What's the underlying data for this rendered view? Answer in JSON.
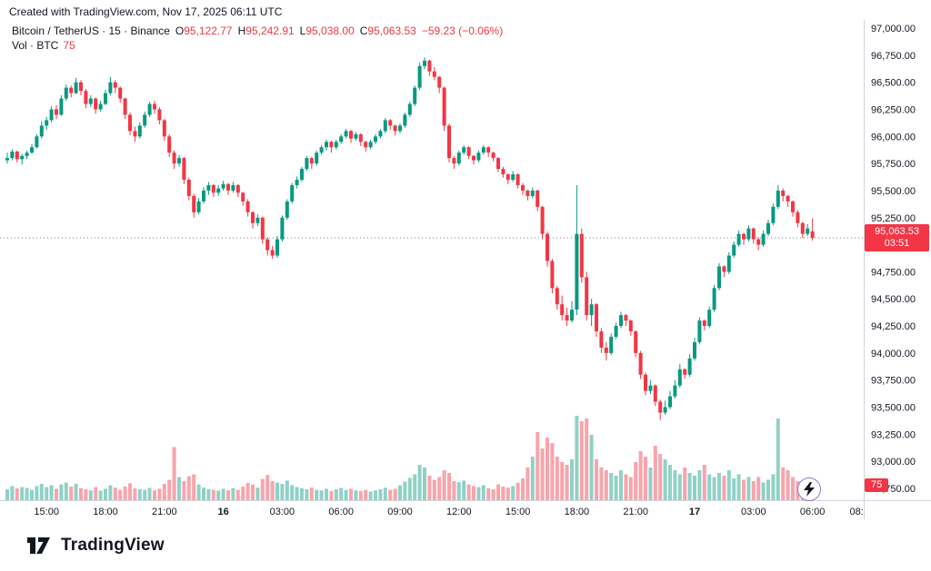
{
  "attribution": "Created with TradingView.com, Nov 17, 2025 06:11 UTC",
  "legend": {
    "title": "Bitcoin / TetherUS · 15 · Binance",
    "o_label": "O",
    "o": "95,122.77",
    "h_label": "H",
    "h": "95,242.91",
    "l_label": "L",
    "l": "95,038.00",
    "c_label": "C",
    "c": "95,063.53",
    "change": "−59.23 (−0.06%)",
    "vol_label": "Vol · BTC",
    "vol": "75"
  },
  "price_badge": {
    "price": "95,063.53",
    "countdown": "03:51"
  },
  "volume_badge": "75",
  "logo_mark": "17",
  "logo_text": "TradingView",
  "colors": {
    "up": "#089981",
    "down": "#f23645",
    "vol_up": "rgba(8,153,129,0.45)",
    "vol_down": "rgba(242,54,69,0.45)",
    "badge": "#f23645",
    "axis_text": "#131722",
    "separator": "#d1d4dc",
    "price_line": "#787b86"
  },
  "price_axis": {
    "min": 92750,
    "max": 97000,
    "step": 250,
    "labels": [
      "97,000.00",
      "96,750.00",
      "96,500.00",
      "96,250.00",
      "96,000.00",
      "95,750.00",
      "95,500.00",
      "95,250.00",
      "95,000.00",
      "94,750.00",
      "94,500.00",
      "94,250.00",
      "94,000.00",
      "93,750.00",
      "93,500.00",
      "93,250.00",
      "93,000.00",
      "92,750.00"
    ]
  },
  "time_axis": [
    {
      "label": "15:00",
      "index": 8,
      "bold": false
    },
    {
      "label": "18:00",
      "index": 20,
      "bold": false
    },
    {
      "label": "21:00",
      "index": 32,
      "bold": false
    },
    {
      "label": "16",
      "index": 44,
      "bold": true
    },
    {
      "label": "03:00",
      "index": 56,
      "bold": false
    },
    {
      "label": "06:00",
      "index": 68,
      "bold": false
    },
    {
      "label": "09:00",
      "index": 80,
      "bold": false
    },
    {
      "label": "12:00",
      "index": 92,
      "bold": false
    },
    {
      "label": "15:00",
      "index": 104,
      "bold": false
    },
    {
      "label": "18:00",
      "index": 116,
      "bold": false
    },
    {
      "label": "21:00",
      "index": 128,
      "bold": false
    },
    {
      "label": "17",
      "index": 140,
      "bold": true
    },
    {
      "label": "03:00",
      "index": 152,
      "bold": false
    },
    {
      "label": "06:00",
      "index": 164,
      "bold": false
    },
    {
      "label": "08:",
      "index": 173,
      "bold": false
    }
  ],
  "chart_data": {
    "type": "candlestick",
    "title": "Bitcoin / TetherUS · 15 · Binance",
    "xlabel": "",
    "ylabel": "Price (USDT)",
    "ylim": [
      92750,
      97000
    ],
    "interval_minutes": 15,
    "last_bar": {
      "open": 95122.77,
      "high": 95242.91,
      "low": 95038.0,
      "close": 95063.53,
      "change": -59.23,
      "change_pct": -0.06,
      "volume_btc": 75
    },
    "candles": [
      [
        95780,
        95850,
        95750,
        95800
      ],
      [
        95800,
        95880,
        95780,
        95860
      ],
      [
        95860,
        95870,
        95760,
        95790
      ],
      [
        95790,
        95840,
        95740,
        95820
      ],
      [
        95820,
        95870,
        95790,
        95850
      ],
      [
        95850,
        95930,
        95840,
        95900
      ],
      [
        95900,
        96020,
        95890,
        96000
      ],
      [
        96000,
        96140,
        95980,
        96100
      ],
      [
        96100,
        96180,
        96060,
        96150
      ],
      [
        96150,
        96280,
        96130,
        96250
      ],
      [
        96250,
        96290,
        96160,
        96200
      ],
      [
        96200,
        96380,
        96190,
        96350
      ],
      [
        96350,
        96480,
        96330,
        96450
      ],
      [
        96450,
        96470,
        96360,
        96400
      ],
      [
        96400,
        96540,
        96390,
        96500
      ],
      [
        96500,
        96520,
        96380,
        96420
      ],
      [
        96420,
        96440,
        96260,
        96300
      ],
      [
        96300,
        96380,
        96270,
        96350
      ],
      [
        96350,
        96360,
        96210,
        96250
      ],
      [
        96250,
        96330,
        96230,
        96300
      ],
      [
        96300,
        96430,
        96290,
        96400
      ],
      [
        96400,
        96550,
        96380,
        96500
      ],
      [
        96500,
        96520,
        96400,
        96450
      ],
      [
        96450,
        96460,
        96310,
        96350
      ],
      [
        96350,
        96360,
        96160,
        96200
      ],
      [
        96200,
        96220,
        96010,
        96050
      ],
      [
        96050,
        96090,
        95950,
        96000
      ],
      [
        96000,
        96130,
        95980,
        96100
      ],
      [
        96100,
        96230,
        96080,
        96200
      ],
      [
        96200,
        96320,
        96180,
        96300
      ],
      [
        96300,
        96330,
        96210,
        96250
      ],
      [
        96250,
        96270,
        96110,
        96150
      ],
      [
        96150,
        96160,
        95960,
        96000
      ],
      [
        96000,
        96020,
        95810,
        95850
      ],
      [
        95850,
        95870,
        95700,
        95750
      ],
      [
        95750,
        95830,
        95720,
        95800
      ],
      [
        95800,
        95810,
        95560,
        95600
      ],
      [
        95600,
        95620,
        95410,
        95450
      ],
      [
        95450,
        95470,
        95250,
        95300
      ],
      [
        95300,
        95430,
        95280,
        95400
      ],
      [
        95400,
        95530,
        95380,
        95500
      ],
      [
        95500,
        95580,
        95460,
        95550
      ],
      [
        95550,
        95560,
        95440,
        95480
      ],
      [
        95480,
        95550,
        95450,
        95520
      ],
      [
        95520,
        95590,
        95500,
        95560
      ],
      [
        95560,
        95570,
        95460,
        95500
      ],
      [
        95500,
        95580,
        95480,
        95550
      ],
      [
        95550,
        95560,
        95440,
        95480
      ],
      [
        95480,
        95490,
        95360,
        95400
      ],
      [
        95400,
        95420,
        95260,
        95300
      ],
      [
        95300,
        95310,
        95150,
        95200
      ],
      [
        95200,
        95280,
        95170,
        95250
      ],
      [
        95250,
        95260,
        95010,
        95050
      ],
      [
        95050,
        95070,
        94900,
        94950
      ],
      [
        94950,
        94990,
        94870,
        94900
      ],
      [
        94900,
        95080,
        94880,
        95050
      ],
      [
        95050,
        95270,
        95030,
        95250
      ],
      [
        95250,
        95420,
        95230,
        95400
      ],
      [
        95400,
        95570,
        95380,
        95550
      ],
      [
        95550,
        95630,
        95520,
        95600
      ],
      [
        95600,
        95720,
        95580,
        95700
      ],
      [
        95700,
        95820,
        95680,
        95800
      ],
      [
        95800,
        95810,
        95700,
        95750
      ],
      [
        95750,
        95870,
        95730,
        95850
      ],
      [
        95850,
        95920,
        95830,
        95900
      ],
      [
        95900,
        95970,
        95870,
        95950
      ],
      [
        95950,
        95960,
        95850,
        95900
      ],
      [
        95900,
        95970,
        95880,
        95950
      ],
      [
        95950,
        96020,
        95930,
        96000
      ],
      [
        96000,
        96070,
        95980,
        96050
      ],
      [
        96050,
        96060,
        95940,
        95980
      ],
      [
        95980,
        96040,
        95960,
        96020
      ],
      [
        96020,
        96030,
        95910,
        95950
      ],
      [
        95950,
        95960,
        95860,
        95900
      ],
      [
        95900,
        95970,
        95880,
        95950
      ],
      [
        95950,
        96020,
        95930,
        96000
      ],
      [
        96000,
        96070,
        95980,
        96050
      ],
      [
        96050,
        96170,
        96030,
        96150
      ],
      [
        96150,
        96160,
        96060,
        96100
      ],
      [
        96100,
        96110,
        96010,
        96050
      ],
      [
        96050,
        96120,
        96030,
        96100
      ],
      [
        96100,
        96220,
        96080,
        96200
      ],
      [
        96200,
        96320,
        96180,
        96300
      ],
      [
        96300,
        96470,
        96280,
        96450
      ],
      [
        96450,
        96680,
        96430,
        96650
      ],
      [
        96650,
        96730,
        96620,
        96700
      ],
      [
        96700,
        96710,
        96560,
        96600
      ],
      [
        96600,
        96640,
        96520,
        96550
      ],
      [
        96550,
        96560,
        96400,
        96450
      ],
      [
        96450,
        96460,
        96050,
        96100
      ],
      [
        96100,
        96120,
        95760,
        95800
      ],
      [
        95800,
        95820,
        95700,
        95750
      ],
      [
        95750,
        95870,
        95730,
        95850
      ],
      [
        95850,
        95920,
        95830,
        95900
      ],
      [
        95900,
        95910,
        95790,
        95820
      ],
      [
        95820,
        95830,
        95740,
        95780
      ],
      [
        95780,
        95870,
        95760,
        95850
      ],
      [
        95850,
        95920,
        95830,
        95900
      ],
      [
        95900,
        95910,
        95810,
        95850
      ],
      [
        95850,
        95860,
        95770,
        95800
      ],
      [
        95800,
        95810,
        95670,
        95700
      ],
      [
        95700,
        95720,
        95620,
        95650
      ],
      [
        95650,
        95660,
        95560,
        95600
      ],
      [
        95600,
        95680,
        95580,
        95650
      ],
      [
        95650,
        95660,
        95520,
        95550
      ],
      [
        95550,
        95570,
        95460,
        95500
      ],
      [
        95500,
        95510,
        95410,
        95450
      ],
      [
        95450,
        95530,
        95430,
        95500
      ],
      [
        95500,
        95510,
        95310,
        95350
      ],
      [
        95350,
        95360,
        95050,
        95100
      ],
      [
        95100,
        95120,
        94800,
        94850
      ],
      [
        94850,
        94870,
        94550,
        94600
      ],
      [
        94600,
        94620,
        94400,
        94450
      ],
      [
        94450,
        94530,
        94300,
        94350
      ],
      [
        94350,
        94420,
        94250,
        94300
      ],
      [
        94300,
        94480,
        94280,
        94400
      ],
      [
        94400,
        95550,
        94350,
        95100
      ],
      [
        95100,
        95150,
        94650,
        94700
      ],
      [
        94700,
        94750,
        94300,
        94350
      ],
      [
        94350,
        94500,
        94250,
        94450
      ],
      [
        94450,
        94460,
        94150,
        94200
      ],
      [
        94200,
        94230,
        94000,
        94050
      ],
      [
        94050,
        94100,
        93930,
        94000
      ],
      [
        94000,
        94180,
        93980,
        94150
      ],
      [
        94150,
        94280,
        94130,
        94250
      ],
      [
        94250,
        94380,
        94230,
        94350
      ],
      [
        94350,
        94360,
        94250,
        94300
      ],
      [
        94300,
        94310,
        94160,
        94200
      ],
      [
        94200,
        94210,
        93960,
        94000
      ],
      [
        94000,
        94020,
        93760,
        93800
      ],
      [
        93800,
        93820,
        93610,
        93650
      ],
      [
        93650,
        93750,
        93620,
        93700
      ],
      [
        93700,
        93710,
        93510,
        93550
      ],
      [
        93550,
        93570,
        93380,
        93450
      ],
      [
        93450,
        93560,
        93430,
        93500
      ],
      [
        93500,
        93650,
        93480,
        93600
      ],
      [
        93600,
        93750,
        93580,
        93700
      ],
      [
        93700,
        93900,
        93680,
        93850
      ],
      [
        93850,
        93860,
        93760,
        93800
      ],
      [
        93800,
        93990,
        93780,
        93950
      ],
      [
        93950,
        94140,
        93930,
        94100
      ],
      [
        94100,
        94330,
        94080,
        94300
      ],
      [
        94300,
        94310,
        94210,
        94250
      ],
      [
        94250,
        94430,
        94230,
        94400
      ],
      [
        94400,
        94630,
        94380,
        94600
      ],
      [
        94600,
        94830,
        94580,
        94800
      ],
      [
        94800,
        94810,
        94700,
        94750
      ],
      [
        94750,
        94930,
        94730,
        94900
      ],
      [
        94900,
        95030,
        94880,
        95000
      ],
      [
        95000,
        95130,
        94980,
        95100
      ],
      [
        95100,
        95110,
        95000,
        95050
      ],
      [
        95050,
        95180,
        95030,
        95150
      ],
      [
        95150,
        95160,
        95010,
        95050
      ],
      [
        95050,
        95070,
        94950,
        95000
      ],
      [
        95000,
        95130,
        94980,
        95100
      ],
      [
        95100,
        95230,
        95080,
        95200
      ],
      [
        95200,
        95380,
        95180,
        95350
      ],
      [
        95350,
        95550,
        95330,
        95500
      ],
      [
        95500,
        95520,
        95400,
        95450
      ],
      [
        95450,
        95460,
        95350,
        95400
      ],
      [
        95400,
        95410,
        95260,
        95300
      ],
      [
        95300,
        95320,
        95160,
        95200
      ],
      [
        95200,
        95210,
        95060,
        95100
      ],
      [
        95100,
        95190,
        95080,
        95150
      ],
      [
        95122.77,
        95242.91,
        95038,
        95063.53
      ]
    ],
    "volumes": [
      40,
      52,
      44,
      48,
      45,
      38,
      52,
      60,
      48,
      55,
      42,
      58,
      65,
      50,
      60,
      44,
      40,
      36,
      48,
      35,
      42,
      55,
      46,
      38,
      50,
      62,
      44,
      40,
      38,
      45,
      36,
      42,
      60,
      75,
      195,
      85,
      70,
      88,
      95,
      58,
      46,
      40,
      38,
      35,
      42,
      36,
      44,
      38,
      50,
      64,
      58,
      46,
      78,
      92,
      70,
      65,
      60,
      72,
      55,
      48,
      44,
      40,
      46,
      38,
      36,
      42,
      34,
      40,
      45,
      38,
      42,
      36,
      34,
      38,
      32,
      36,
      40,
      46,
      38,
      42,
      55,
      68,
      82,
      95,
      130,
      120,
      90,
      75,
      85,
      110,
      100,
      70,
      66,
      72,
      58,
      52,
      48,
      55,
      44,
      40,
      58,
      50,
      46,
      52,
      64,
      80,
      120,
      160,
      250,
      190,
      230,
      210,
      160,
      140,
      130,
      150,
      310,
      290,
      300,
      240,
      150,
      120,
      110,
      100,
      90,
      110,
      95,
      85,
      140,
      180,
      160,
      120,
      200,
      170,
      150,
      130,
      110,
      95,
      120,
      100,
      90,
      110,
      130,
      95,
      85,
      100,
      90,
      110,
      80,
      95,
      75,
      85,
      70,
      85,
      65,
      75,
      95,
      300,
      120,
      110,
      85,
      70,
      60,
      55,
      75
    ]
  }
}
